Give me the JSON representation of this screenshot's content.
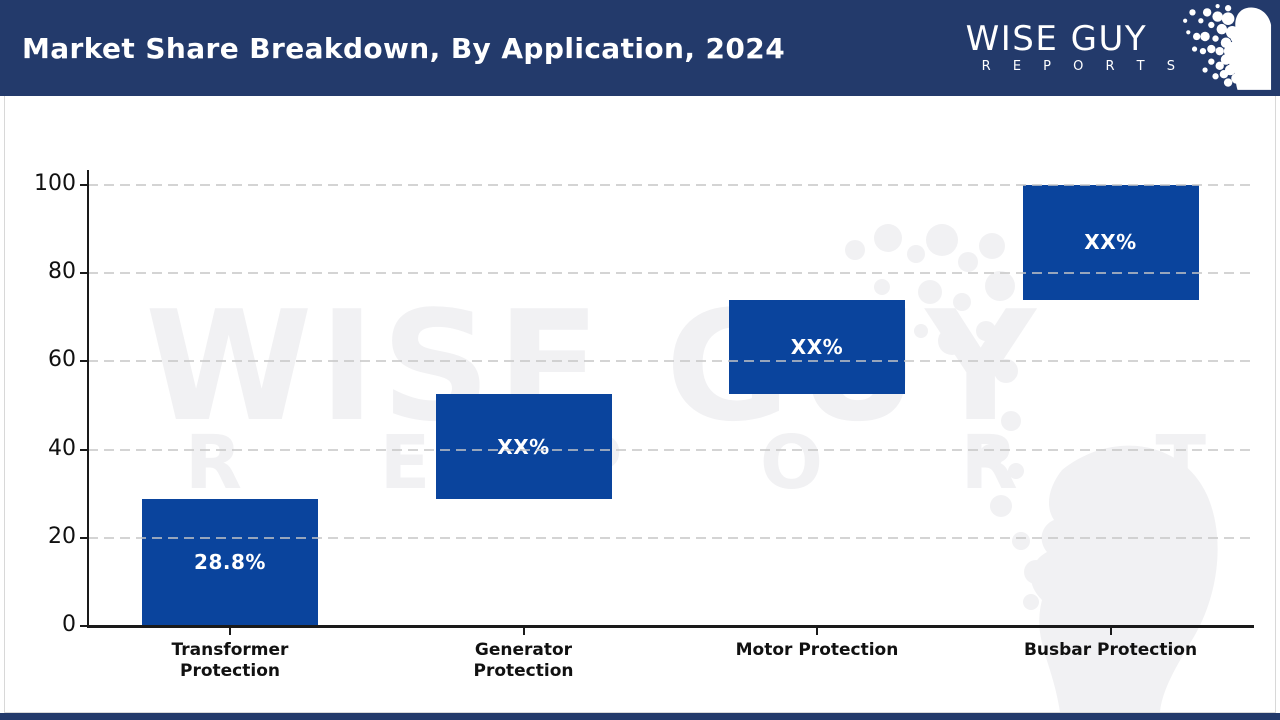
{
  "header": {
    "title": "Market Share Breakdown, By Application, 2024",
    "logo": {
      "brand": "WISE GUY",
      "sub": "R E P O R T S"
    }
  },
  "watermark": {
    "brand": "WISE GUY",
    "sub": "R E P O R T S"
  },
  "chart_data": {
    "type": "bar",
    "variant": "waterfall",
    "title": "Market Share Breakdown, By Application, 2024",
    "categories": [
      "Transformer Protection",
      "Generator Protection",
      "Motor Protection",
      "Busbar Protection"
    ],
    "category_lines": [
      [
        "Transformer",
        "Protection"
      ],
      [
        "Generator",
        "Protection"
      ],
      [
        "Motor Protection"
      ],
      [
        "Busbar Protection"
      ]
    ],
    "segments": [
      {
        "start": 0,
        "end": 28.8
      },
      {
        "start": 28.8,
        "end": 52.5
      },
      {
        "start": 52.5,
        "end": 74.0
      },
      {
        "start": 74.0,
        "end": 100.0
      }
    ],
    "bar_labels": [
      "28.8%",
      "XX%",
      "XX%",
      "XX%"
    ],
    "yticks": [
      0,
      20,
      40,
      60,
      80,
      100
    ],
    "ylim": [
      0,
      105
    ],
    "xlabel": "",
    "ylabel": "",
    "grid": "horizontal-dashed",
    "legend": "none",
    "bar_color": "#0a449d",
    "bar_label_color": "#ffffff"
  },
  "colors": {
    "header_bg": "#233a6b",
    "footer_bg": "#233a6b",
    "axis": "#1a1a1a",
    "grid": "#c6c6c6",
    "watermark": "#f1f1f3"
  }
}
